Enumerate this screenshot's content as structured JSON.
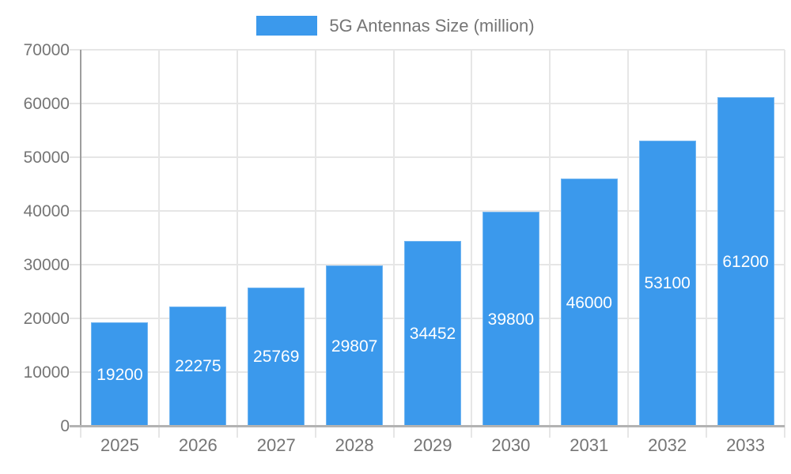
{
  "legend": {
    "label": "5G Antennas Size (million)"
  },
  "chart_data": {
    "type": "bar",
    "title": "5G Antennas Size (million)",
    "series_name": "5G Antennas Size (million)",
    "categories": [
      "2025",
      "2026",
      "2027",
      "2028",
      "2029",
      "2030",
      "2031",
      "2032",
      "2033"
    ],
    "values": [
      19200,
      22275,
      25769,
      29807,
      34452,
      39800,
      46000,
      53100,
      61200
    ],
    "bar_labels": [
      "19200",
      "22275",
      "25769",
      "29807",
      "34452",
      "39800",
      "46000",
      "53100",
      "61200"
    ],
    "xlabel": "",
    "ylabel": "",
    "ylim": [
      0,
      70000
    ],
    "ytick_step": 10000,
    "ytick_labels": [
      "0",
      "10000",
      "20000",
      "30000",
      "40000",
      "50000",
      "60000",
      "70000"
    ],
    "grid": true,
    "legend_position": "top-center",
    "colors": {
      "bar": "#3b99ec",
      "bar_label": "#ffffff",
      "axis_text": "#757575",
      "gridline": "#e6e6e6",
      "y_axis_line": "#9e9e9e",
      "x_axis_line": "#b3b3b3"
    }
  }
}
